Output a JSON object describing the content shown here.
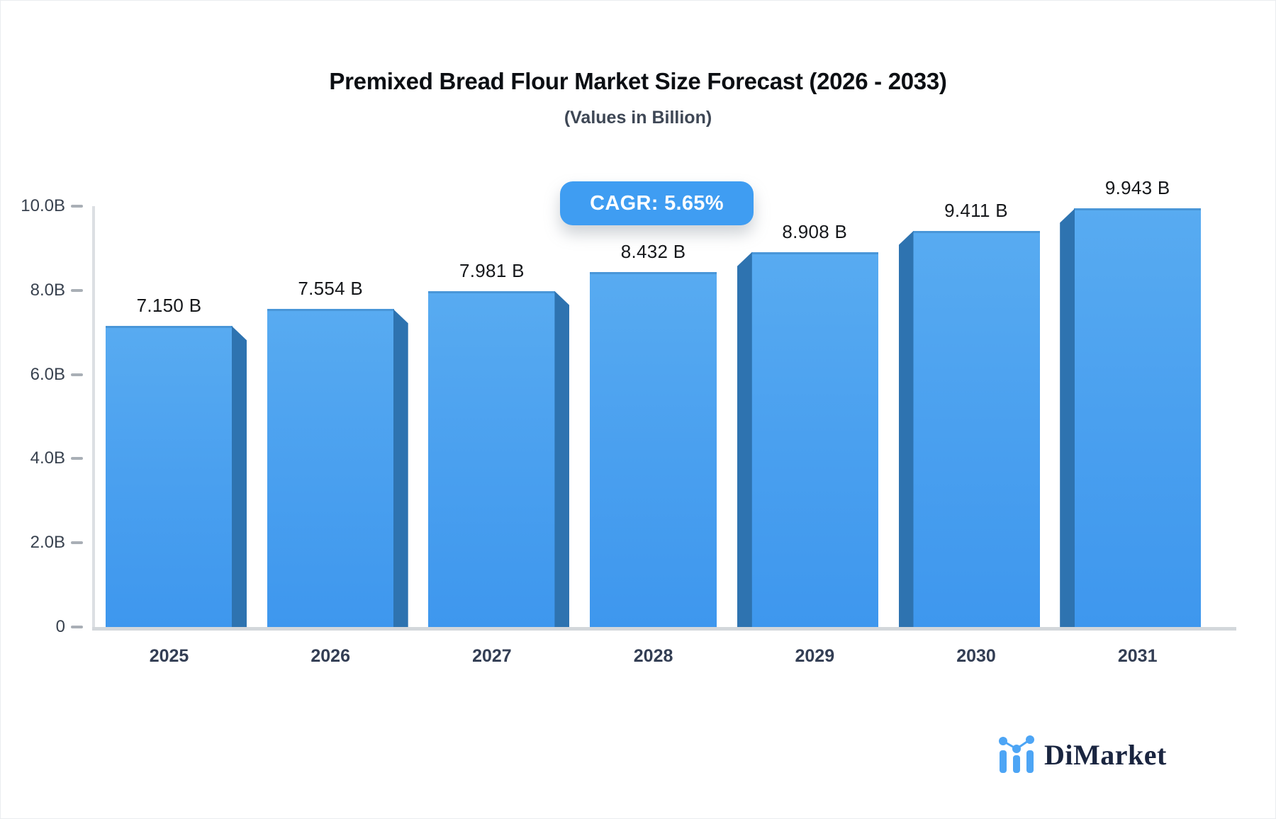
{
  "header": {
    "title": "Premixed Bread Flour Market Size Forecast (2026 - 2033)",
    "subtitle": "(Values in Billion)"
  },
  "badge": {
    "label": "CAGR: 5.65%"
  },
  "chart_data": {
    "type": "bar",
    "title": "Premixed Bread Flour Market Size Forecast (2026 - 2033)",
    "subtitle": "(Values in Billion)",
    "unit": "Billion",
    "categories": [
      "2025",
      "2026",
      "2027",
      "2028",
      "2029",
      "2030",
      "2031"
    ],
    "values": [
      7.15,
      7.554,
      7.981,
      8.432,
      8.908,
      9.411,
      9.943
    ],
    "value_labels": [
      "7.150 B",
      "7.554 B",
      "7.981 B",
      "8.432 B",
      "8.908 B",
      "9.411 B",
      "9.943 B"
    ],
    "ylim": [
      0,
      10
    ],
    "yticks": [
      {
        "value": 0,
        "label": "0"
      },
      {
        "value": 2,
        "label": "2.0B"
      },
      {
        "value": 4,
        "label": "4.0B"
      },
      {
        "value": 6,
        "label": "6.0B"
      },
      {
        "value": 8,
        "label": "8.0B"
      },
      {
        "value": 10,
        "label": "10.0B"
      }
    ],
    "grid": false,
    "legend": false,
    "bar_face_color": "#459ff0",
    "bar_side_color": "#2e73b0",
    "cagr": "5.65%"
  },
  "logo": {
    "text": "DiMarket",
    "icon": "bar-chart-logo-icon",
    "accent_color": "#4da5f5",
    "text_color": "#1a2540"
  }
}
